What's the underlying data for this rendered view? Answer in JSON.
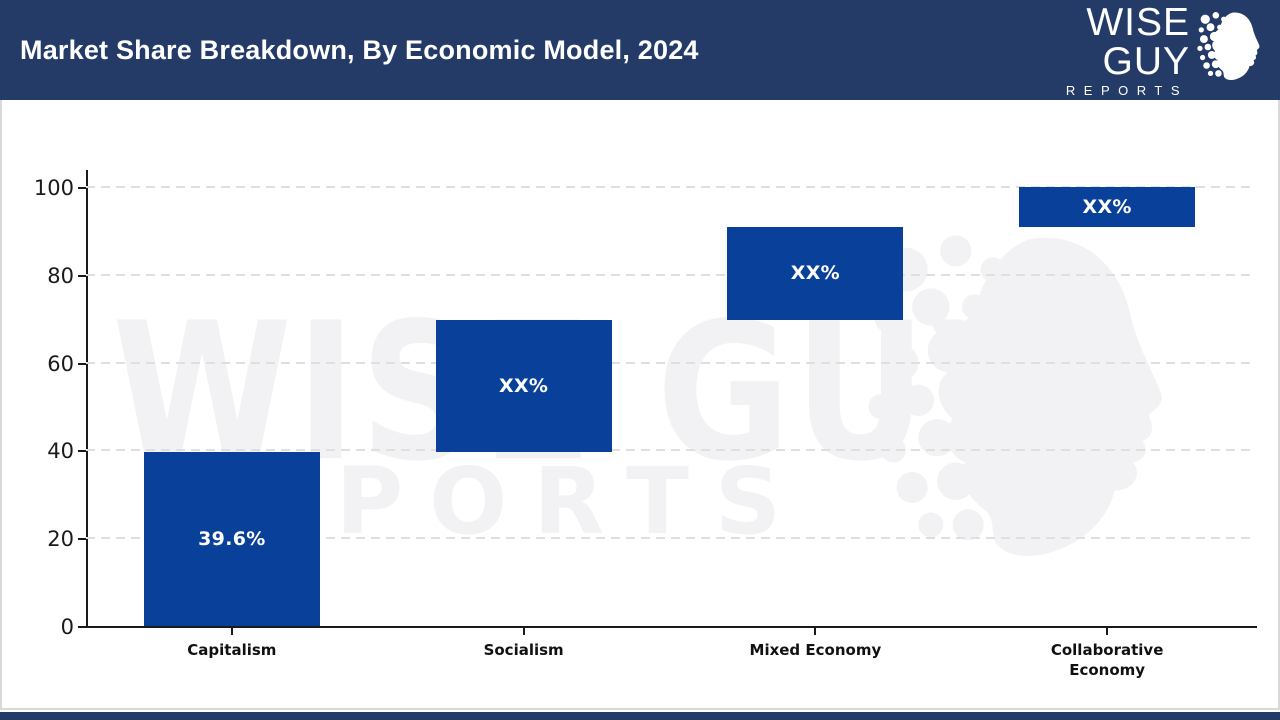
{
  "header": {
    "title": "Market Share Breakdown, By Economic Model, 2024",
    "logo": {
      "wordmark": "WISE GUY",
      "sub": "REPORTS"
    }
  },
  "watermark": {
    "line1": "WISE GUY",
    "line2": "REPORTS"
  },
  "theme": {
    "header_bg": "#243b68",
    "header_text": "#ffffff",
    "footer_bg": "#243b68",
    "bar_color": "#09419a",
    "bar_label_color": "#ffffff",
    "gridline_color": "#dfdfdf",
    "axis_color": "#1a1a1a",
    "watermark_color": "#f2f2f4",
    "frame_border": "#d9d9d9"
  },
  "chart_data": {
    "type": "bar",
    "subtype": "waterfall",
    "title": "Market Share Breakdown, By Economic Model, 2024",
    "categories": [
      "Capitalism",
      "Socialism",
      "Mixed Economy",
      "Collaborative Economy"
    ],
    "series": [
      {
        "name": "Market Share",
        "segments": [
          {
            "category": "Capitalism",
            "start": 0,
            "end": 39.6,
            "label": "39.6%"
          },
          {
            "category": "Socialism",
            "start": 39.6,
            "end": 69.6,
            "label": "XX%"
          },
          {
            "category": "Mixed Economy",
            "start": 69.6,
            "end": 91.0,
            "label": "XX%"
          },
          {
            "category": "Collaborative Economy",
            "start": 91.0,
            "end": 100.0,
            "label": "XX%"
          }
        ]
      }
    ],
    "xlabel": "",
    "ylabel": "",
    "ylim": [
      0,
      100
    ],
    "yticks": [
      0,
      20,
      40,
      60,
      80,
      100
    ],
    "grid": "horizontal-dashed",
    "legend": "none"
  }
}
